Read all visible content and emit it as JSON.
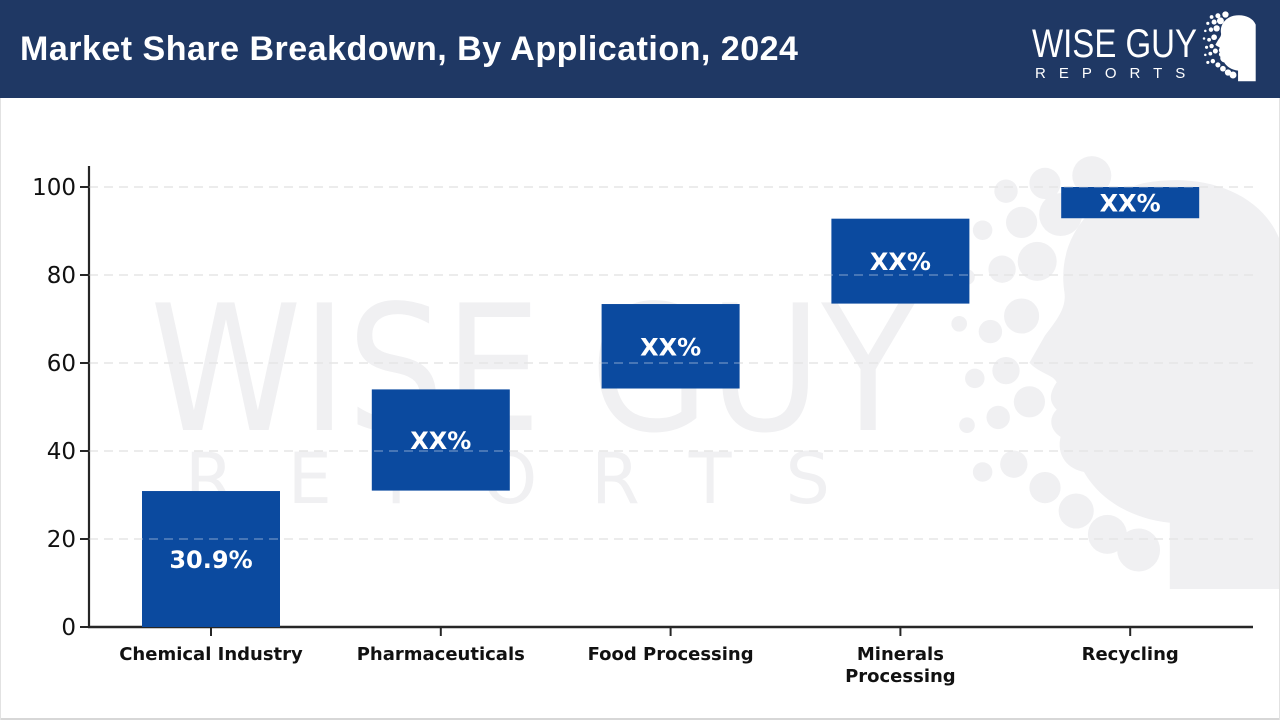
{
  "header": {
    "title": "Market Share Breakdown, By Application, 2024",
    "logo": {
      "brand": "WISE GUY",
      "sub": "REPORTS"
    }
  },
  "watermark": {
    "brand": "WISE GUY",
    "sub": "REPORTS"
  },
  "chart_data": {
    "type": "bar",
    "variant": "waterfall",
    "title": "Market Share Breakdown, By Application, 2024",
    "categories": [
      "Chemical Industry",
      "Pharmaceuticals",
      "Food Processing",
      "Minerals Processing",
      "Recycling"
    ],
    "category_lines": [
      [
        "Chemical Industry"
      ],
      [
        "Pharmaceuticals"
      ],
      [
        "Food Processing"
      ],
      [
        "Minerals",
        "Processing"
      ],
      [
        "Recycling"
      ]
    ],
    "segments": [
      {
        "category": "Chemical Industry",
        "start": 0,
        "end": 30.9,
        "label": "30.9%"
      },
      {
        "category": "Pharmaceuticals",
        "start": 31,
        "end": 54,
        "label": "XX%"
      },
      {
        "category": "Food Processing",
        "start": 54.2,
        "end": 73.4,
        "label": "XX%"
      },
      {
        "category": "Minerals Processing",
        "start": 73.5,
        "end": 92.8,
        "label": "XX%"
      },
      {
        "category": "Recycling",
        "start": 92.9,
        "end": 100,
        "label": "XX%"
      }
    ],
    "yticks": [
      0,
      20,
      40,
      60,
      80,
      100
    ],
    "ylim": [
      0,
      105
    ],
    "grid": "horizontal-dashed",
    "legend": "none",
    "bar_color": "#0b4a9f",
    "bar_label_color": "#ffffff",
    "axis_color": "#262626",
    "grid_color": "#dcdcdc",
    "tick_label_color": "#111111"
  },
  "colors": {
    "header_bg": "#1f3864",
    "watermark": "#f0f0f2",
    "page_border": "#d9d9d9"
  }
}
